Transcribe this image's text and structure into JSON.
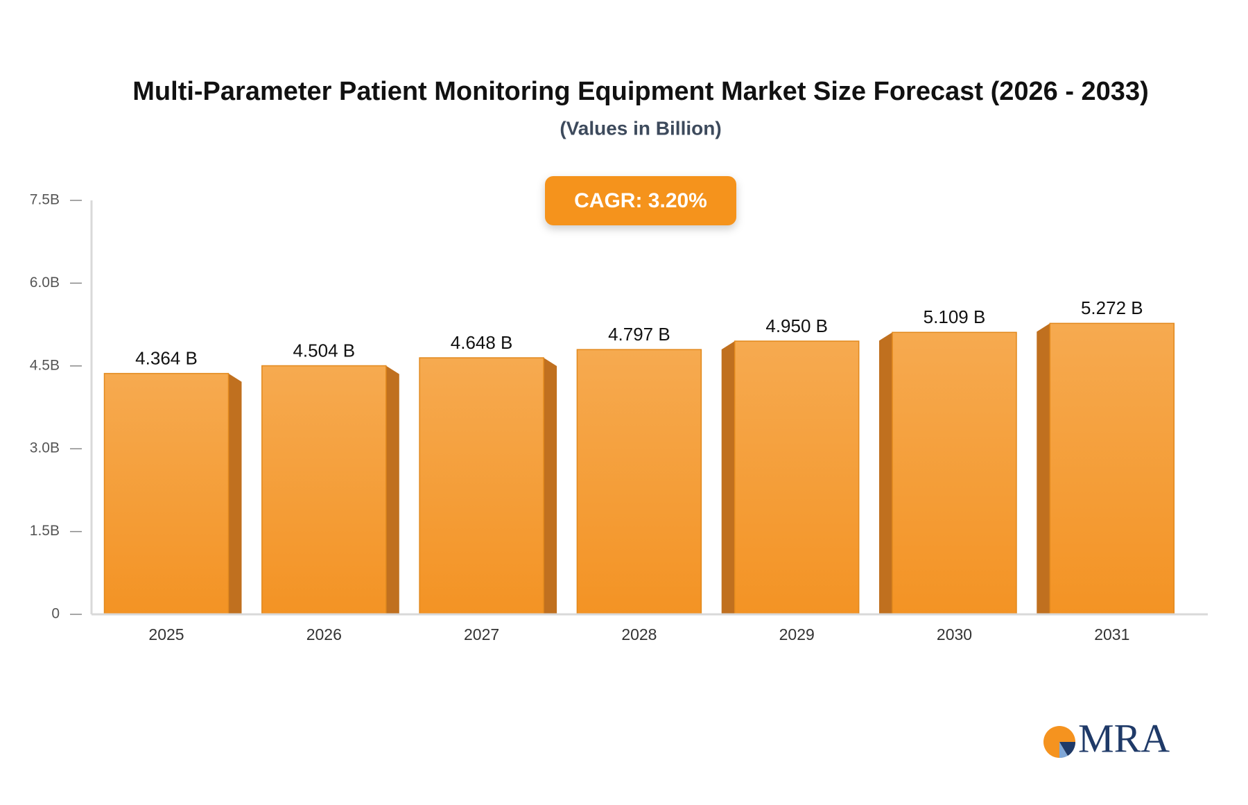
{
  "chart_data": {
    "type": "bar",
    "title": "Multi-Parameter Patient Monitoring Equipment Market Size Forecast (2026 - 2033)",
    "subtitle": "(Values in Billion)",
    "annotation": "CAGR: 3.20%",
    "logo": "MRA",
    "categories": [
      "2025",
      "2026",
      "2027",
      "2028",
      "2029",
      "2030",
      "2031"
    ],
    "values": [
      4.364,
      4.504,
      4.648,
      4.797,
      4.95,
      5.109,
      5.272
    ],
    "value_labels": [
      "4.364 B",
      "4.504 B",
      "4.648 B",
      "4.797 B",
      "4.950 B",
      "5.109 B",
      "5.272 B"
    ],
    "color": "#f5a13e",
    "ylim": [
      0,
      7.5
    ],
    "yticks": [
      0,
      {
        "value": 1.5,
        "label": "1.5B"
      },
      {
        "value": 3,
        "label": "3.0B"
      },
      {
        "value": 4.5,
        "label": "4.5B"
      },
      {
        "value": 6,
        "label": "6.0B"
      },
      {
        "value": 7.5,
        "label": "7.5B"
      }
    ]
  }
}
